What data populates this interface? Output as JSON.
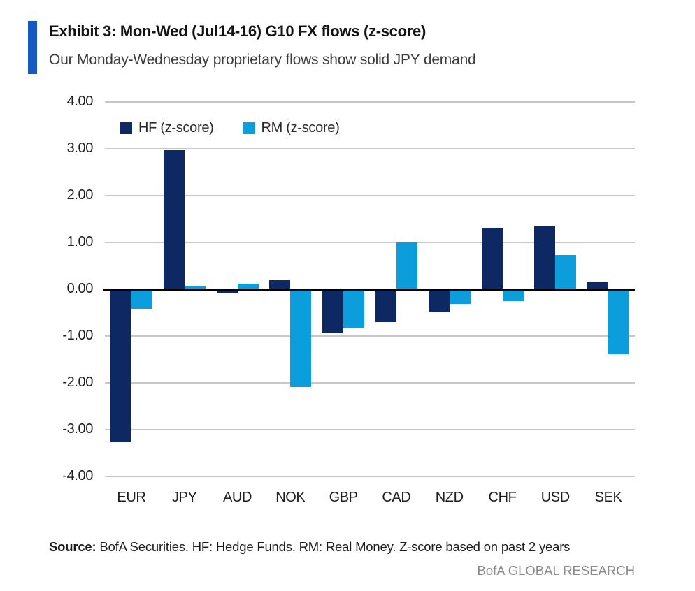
{
  "header": {
    "title": "Exhibit 3: Mon-Wed (Jul14-16) G10 FX flows (z-score)",
    "subtitle": "Our Monday-Wednesday proprietary flows show solid JPY demand",
    "accent_color": "#1659c2"
  },
  "chart_data": {
    "type": "bar",
    "categories": [
      "EUR",
      "JPY",
      "AUD",
      "NOK",
      "GBP",
      "CAD",
      "NZD",
      "CHF",
      "USD",
      "SEK"
    ],
    "series": [
      {
        "name": "HF (z-score)",
        "color": "#0e2864",
        "values": [
          -3.25,
          2.97,
          -0.08,
          0.19,
          -0.92,
          -0.68,
          -0.48,
          1.32,
          1.34,
          0.16
        ]
      },
      {
        "name": "RM (z-score)",
        "color": "#0b9ddc",
        "values": [
          -0.4,
          0.07,
          0.12,
          -2.07,
          -0.82,
          1.0,
          -0.3,
          -0.24,
          0.73,
          -1.37
        ]
      }
    ],
    "title": "Exhibit 3: Mon-Wed (Jul14-16) G10 FX flows (z-score)",
    "xlabel": "",
    "ylabel": "",
    "ylim": [
      -4,
      4
    ],
    "ytick_step": 1,
    "ytick_decimals": 2,
    "grid": true,
    "gridline_color": "#c7c7c7",
    "zero_axis_color": "#000000",
    "legend_position": "top-left-inside"
  },
  "footer": {
    "source_label": "Source:",
    "source_text": " BofA Securities. HF: Hedge Funds. RM: Real Money. Z-score based on past 2 years",
    "brand": "BofA GLOBAL RESEARCH",
    "brand_color": "#8b8b8b"
  }
}
